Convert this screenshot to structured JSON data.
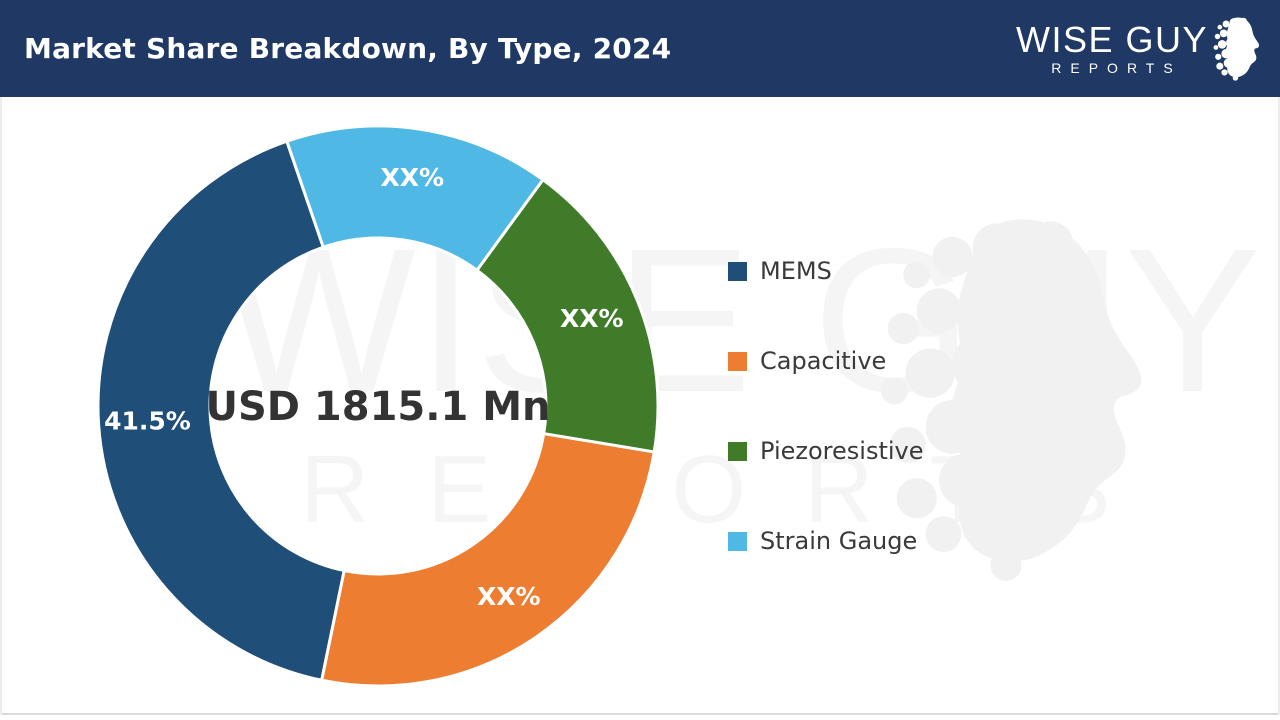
{
  "header": {
    "title": "Market Share Breakdown, By Type, 2024",
    "logo": {
      "name": "WISE GUY",
      "tagline": "REPORTS"
    }
  },
  "colors": {
    "header_bg": "#1F3864",
    "mems": "#1F4E79",
    "capacitive": "#ED7D31",
    "piezoresistive": "#3F7B28",
    "strain_gauge": "#4FB8E4",
    "center_text": "#333333",
    "legend_text": "#3A3A3A",
    "watermark": "#F3F3F3"
  },
  "chart_data": {
    "type": "pie",
    "subtype": "donut",
    "title": "Market Share Breakdown, By Type, 2024",
    "center_label": "USD 1815.1 Mn",
    "legend_position": "right",
    "direction": "counterclockwise",
    "start_angle_deg": 109,
    "donut_hole_ratio": 0.6,
    "segments": [
      {
        "label": "MEMS",
        "color": "#1F4E79",
        "percent_shown": "41.5%",
        "percent_est": 41.5
      },
      {
        "label": "Capacitive",
        "color": "#ED7D31",
        "percent_shown": "XX%",
        "percent_est": 25.6
      },
      {
        "label": "Piezoresistive",
        "color": "#3F7B28",
        "percent_shown": "XX%",
        "percent_est": 17.6
      },
      {
        "label": "Strain Gauge",
        "color": "#4FB8E4",
        "percent_shown": "XX%",
        "percent_est": 15.3
      }
    ],
    "note": "XX% values are masked in the source image; percent_est estimated from arc angles"
  }
}
